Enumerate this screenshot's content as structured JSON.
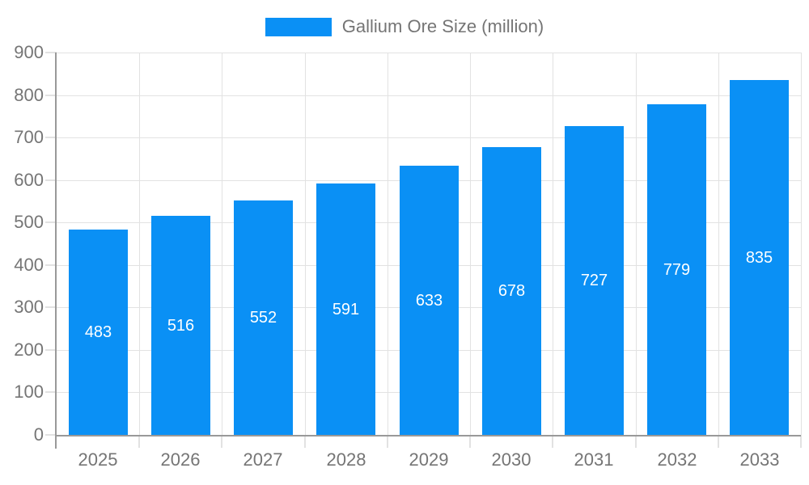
{
  "legend": {
    "label": "Gallium Ore Size (million)"
  },
  "chart_data": {
    "type": "bar",
    "title": "Gallium Ore Size (million)",
    "categories": [
      "2025",
      "2026",
      "2027",
      "2028",
      "2029",
      "2030",
      "2031",
      "2032",
      "2033"
    ],
    "series": [
      {
        "name": "Gallium Ore Size (million)",
        "values": [
          483,
          516,
          552,
          591,
          633,
          678,
          727,
          779,
          835
        ]
      }
    ],
    "xlabel": "",
    "ylabel": "",
    "ylim": [
      0,
      900
    ],
    "ytick_step": 100,
    "yticks": [
      0,
      100,
      200,
      300,
      400,
      500,
      600,
      700,
      800,
      900
    ],
    "grid": true,
    "legend_position": "top",
    "value_labels": "inside-center",
    "colors": {
      "bar": "#0a90f5",
      "grid": "#e2e2e2",
      "axis": "#999999",
      "tick_label": "#757575",
      "value_label": "#ffffff"
    }
  }
}
